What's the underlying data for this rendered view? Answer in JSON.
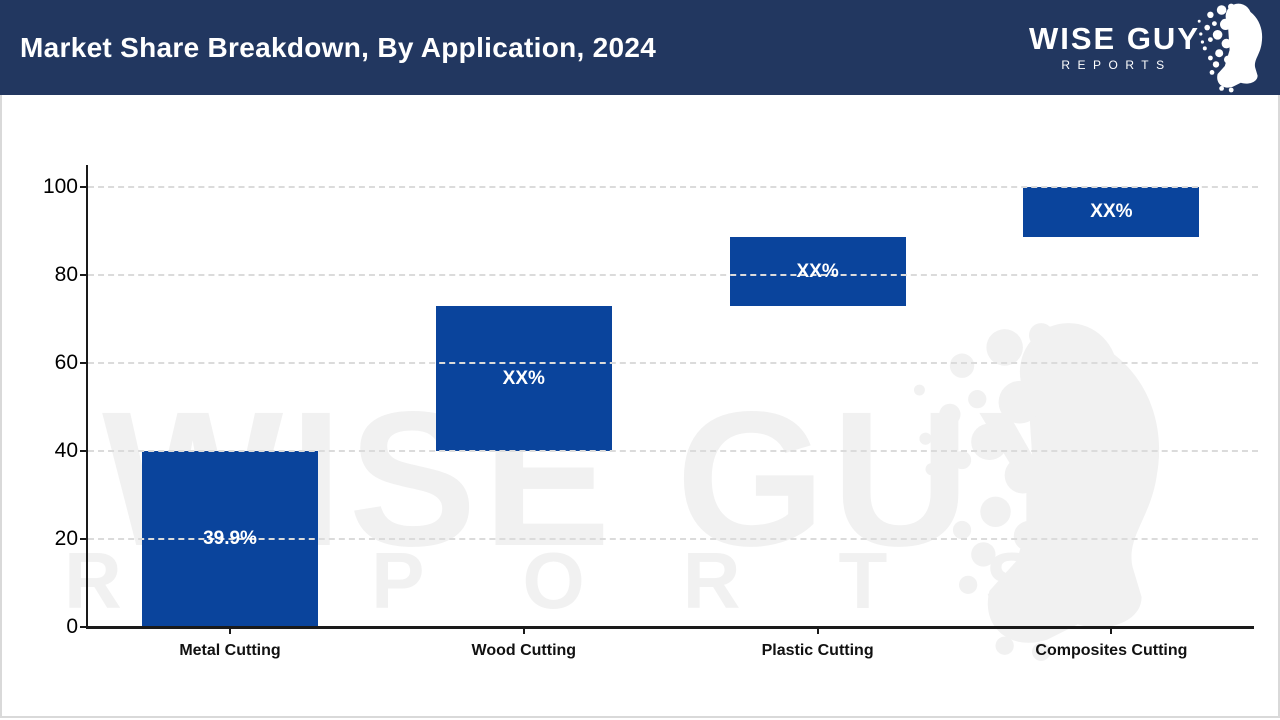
{
  "header": {
    "title": "Market Share Breakdown, By Application, 2024",
    "background": "#223760"
  },
  "brand": {
    "name": "WISE GUY",
    "sub": "REPORTS"
  },
  "chart_data": {
    "type": "bar",
    "subtype": "waterfall",
    "title": "Market Share Breakdown, By Application, 2024",
    "xlabel": "",
    "ylabel": "",
    "categories": [
      "Metal Cutting",
      "Wood Cutting",
      "Plastic Cutting",
      "Composites Cutting"
    ],
    "series": [
      {
        "name": "Market Share",
        "starts": [
          0,
          39.9,
          72.9,
          88.6
        ],
        "values": [
          39.9,
          33.0,
          15.7,
          11.4
        ]
      }
    ],
    "bar_labels": [
      "39.9%",
      "XX%",
      "XX%",
      "XX%"
    ],
    "yticks": [
      0,
      20,
      40,
      60,
      80,
      100
    ],
    "ylim": [
      0,
      105
    ],
    "bar_color": "#0a449c",
    "grid": "horizontal-dashed",
    "gridline_color": "#dbdbdb",
    "legend": "none"
  }
}
